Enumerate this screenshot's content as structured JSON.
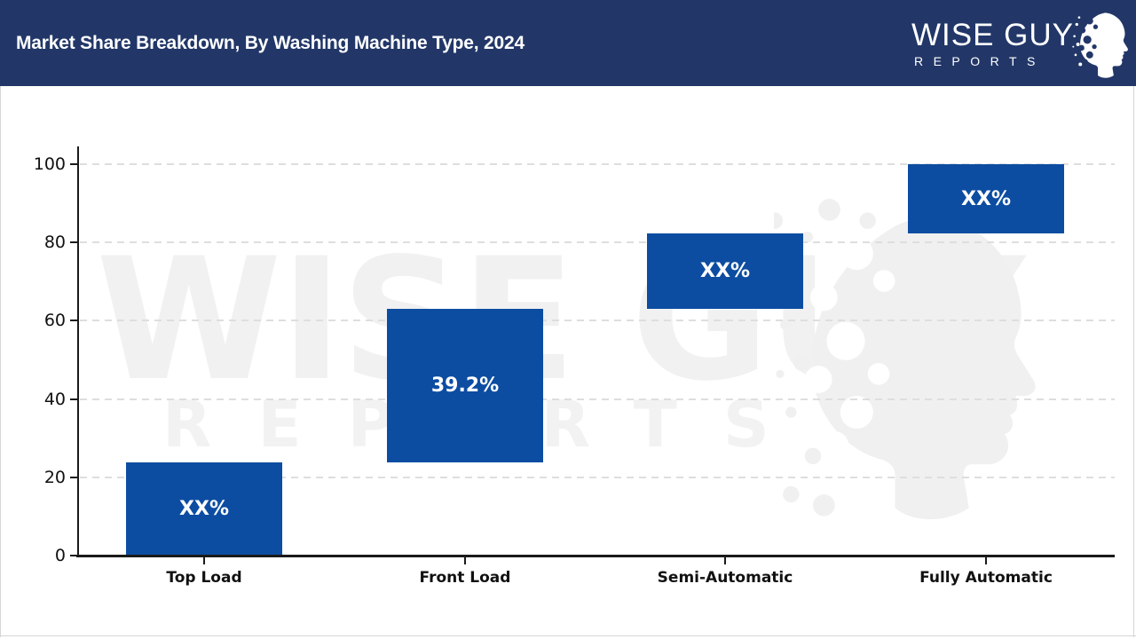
{
  "header": {
    "title": "Market Share Breakdown, By Washing Machine Type, 2024",
    "bg_color": "#223768",
    "logo": {
      "name": "WISE GUY",
      "sub": "REPORTS"
    }
  },
  "watermark": {
    "name": "WISE GUY",
    "sub": "REPORTS"
  },
  "chart_data": {
    "type": "bar",
    "subtype": "waterfall",
    "title": "Market Share Breakdown, By Washing Machine Type, 2024",
    "categories": [
      "Top Load",
      "Front Load",
      "Semi-Automatic",
      "Fully Automatic"
    ],
    "series": [
      {
        "name": "Market share (%)",
        "starts": [
          0,
          23.8,
          63,
          82.3
        ],
        "ends": [
          23.8,
          63,
          82.3,
          100
        ]
      }
    ],
    "bar_labels": [
      "XX%",
      "39.2%",
      "XX%",
      "XX%"
    ],
    "yticks": [
      0,
      20,
      40,
      60,
      80,
      100
    ],
    "ylim": [
      0,
      100
    ],
    "bar_color": "#0c4da2",
    "bar_label_color": "#ffffff",
    "grid": "horizontal-dashed",
    "legend": "none"
  }
}
